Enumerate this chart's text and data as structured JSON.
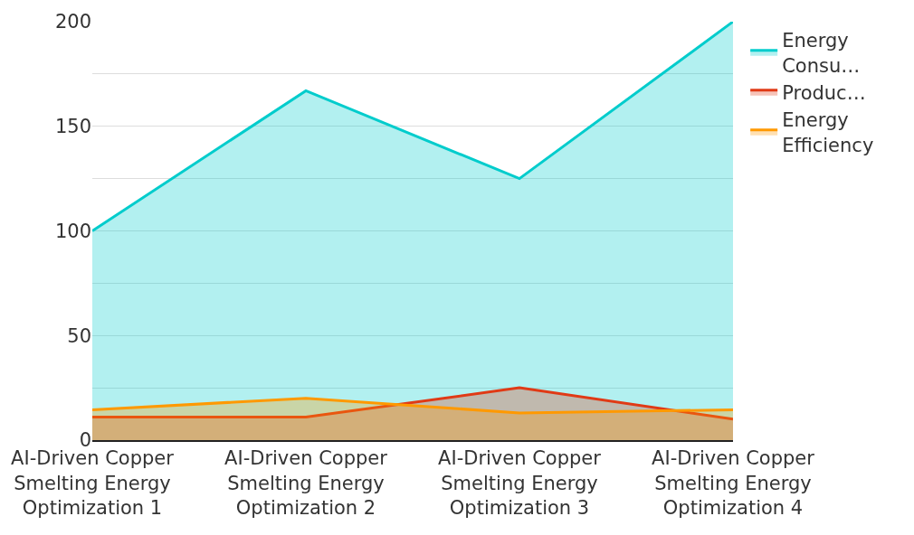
{
  "chart_data": {
    "type": "area",
    "categories": [
      "AI-Driven Copper Smelting Energy Optimization 1",
      "AI-Driven Copper Smelting Energy Optimization 2",
      "AI-Driven Copper Smelting Energy Optimization 3",
      "AI-Driven Copper Smelting Energy Optimization 4"
    ],
    "series": [
      {
        "name": "Energy Consu…",
        "color": "#00cccc",
        "values": [
          100,
          167,
          125,
          200
        ]
      },
      {
        "name": "Produc…",
        "color": "#e03a16",
        "values": [
          11,
          11,
          25,
          10
        ]
      },
      {
        "name": "Energy Efficiency",
        "color": "#ff9900",
        "values": [
          14.5,
          20,
          13,
          14.5
        ]
      }
    ],
    "ylim": [
      0,
      200
    ],
    "yticks": [
      0,
      {
        "value": 25,
        "label": null
      },
      50,
      {
        "value": 75,
        "label": null
      },
      100,
      {
        "value": 125,
        "label": null
      },
      150,
      {
        "value": 175,
        "label": null
      },
      200
    ],
    "grid": "y",
    "legend": "top right"
  }
}
